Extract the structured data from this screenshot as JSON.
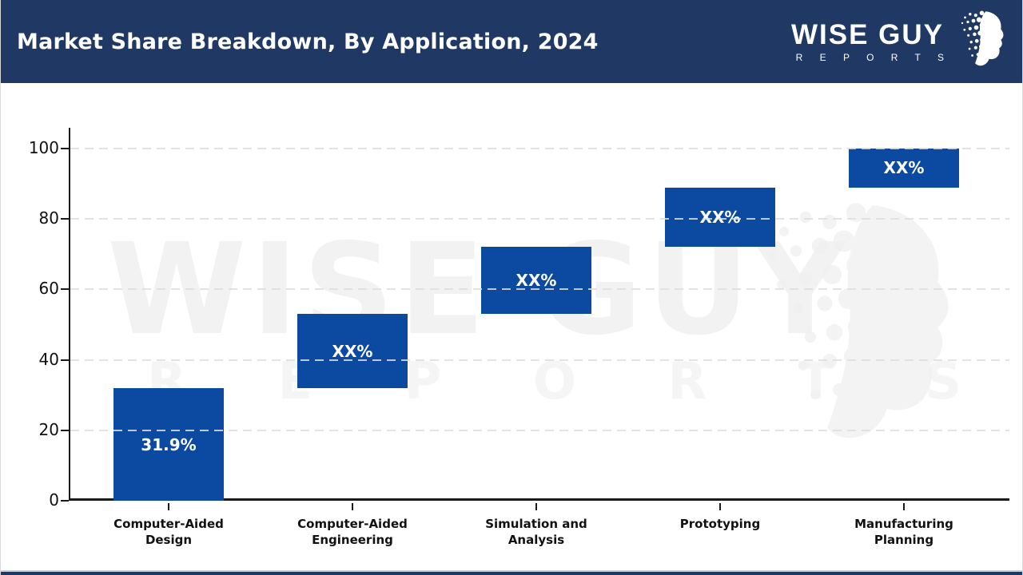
{
  "header": {
    "title": "Market Share Breakdown, By Application, 2024",
    "logo": {
      "name": "WISE GUY",
      "subtitle": "R E P O R T S"
    }
  },
  "watermark": {
    "line1": "WISE GUY",
    "line2": "R E P O R T S"
  },
  "chart_data": {
    "type": "bar",
    "subtype": "floating-waterfall",
    "title": "Market Share Breakdown, By Application, 2024",
    "categories": [
      "Computer-Aided Design",
      "Computer-Aided Engineering",
      "Simulation and Analysis",
      "Prototyping",
      "Manufacturing Planning"
    ],
    "x_tick_lines": [
      [
        "Computer-Aided",
        "Design"
      ],
      [
        "Computer-Aided",
        "Engineering"
      ],
      [
        "Simulation and",
        "Analysis"
      ],
      [
        "Prototyping"
      ],
      [
        "Manufacturing",
        "Planning"
      ]
    ],
    "series": [
      {
        "name": "Market Share (%)",
        "segments": [
          {
            "category": "Computer-Aided Design",
            "label": "31.9%",
            "from": 0.0,
            "to": 31.9,
            "value": 31.9
          },
          {
            "category": "Computer-Aided Engineering",
            "label": "XX%",
            "from": 31.9,
            "to": 53.1,
            "value": 21.2
          },
          {
            "category": "Simulation and Analysis",
            "label": "XX%",
            "from": 53.1,
            "to": 72.1,
            "value": 19.0
          },
          {
            "category": "Prototyping",
            "label": "XX%",
            "from": 72.1,
            "to": 89.0,
            "value": 16.9
          },
          {
            "category": "Manufacturing Planning",
            "label": "XX%",
            "from": 89.0,
            "to": 100.0,
            "value": 11.0
          }
        ]
      }
    ],
    "yticks": [
      0,
      20,
      40,
      60,
      80,
      100
    ],
    "ylim": [
      0,
      106
    ],
    "xlabel": "",
    "ylabel": "",
    "grid": "horizontal-dashed",
    "legend": "none",
    "bar_color": "#0b4aa0",
    "value_label_color": "#ffffff"
  },
  "colors": {
    "header_bg": "#1f3864",
    "footer_bg": "#1f3864",
    "bar": "#0b4aa0",
    "axis": "#1a1a1a",
    "grid": "#dedede",
    "watermark": "#f2f2f2"
  }
}
